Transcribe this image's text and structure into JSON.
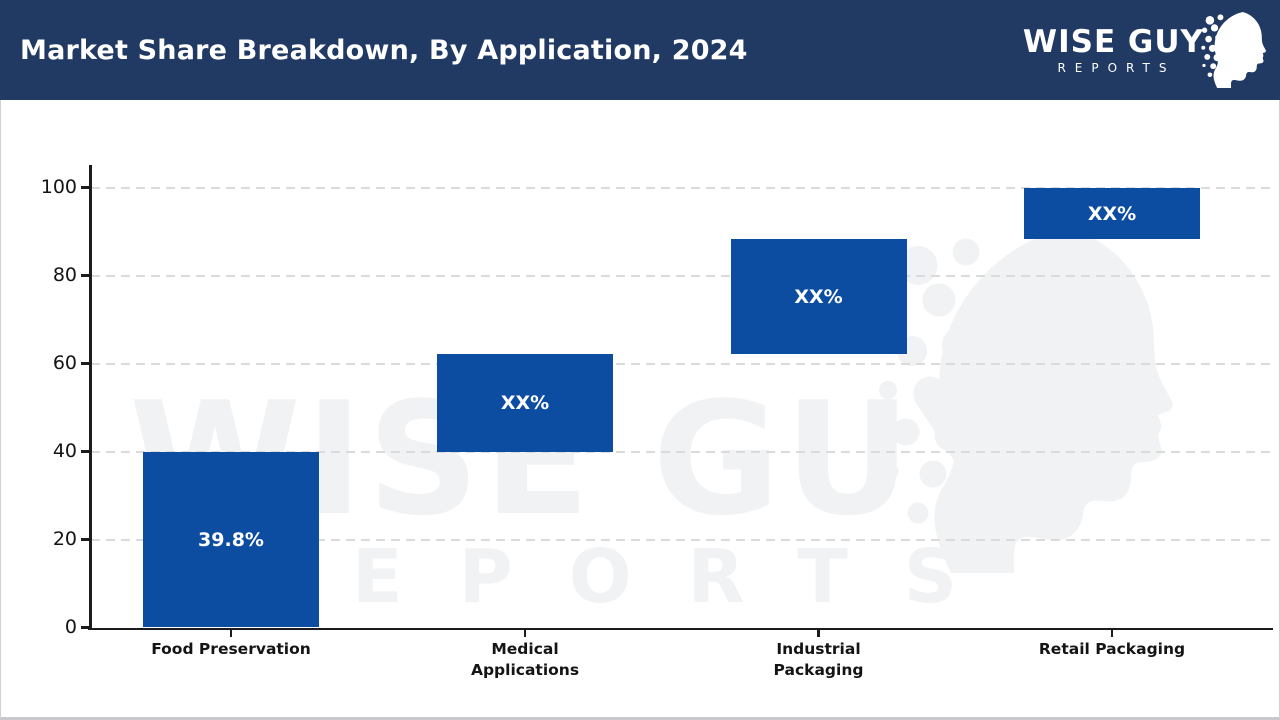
{
  "header": {
    "title": "Market Share Breakdown, By Application, 2024"
  },
  "logo": {
    "line1": "WISE GUY",
    "line2": "REPORTS",
    "icon": "head-profile-dots-icon"
  },
  "watermark": {
    "line1": "WISE GUY",
    "line2": "REPORTS",
    "icon": "head-profile-dots-icon"
  },
  "colors": {
    "header_bg": "#213a64",
    "bar_blue": "#0c4da2",
    "bar_label": "#ffffff",
    "axis_text": "#141414",
    "gridline": "#dbdbdb",
    "watermark": "#f1f2f4"
  },
  "chart_data": {
    "type": "bar",
    "subtype": "waterfall",
    "title": "Market Share Breakdown, By Application, 2024",
    "xlabel": "",
    "ylabel": "",
    "ylim": [
      0,
      105
    ],
    "yticks": [
      0,
      20,
      40,
      60,
      80,
      100
    ],
    "grid": "horizontal-dashed",
    "legend": "none",
    "categories": [
      "Food Preservation",
      "Medical\nApplications",
      "Industrial\nPackaging",
      "Retail Packaging"
    ],
    "bars": [
      {
        "category": "Food Preservation",
        "start": 0,
        "end": 39.8,
        "label": "39.8%"
      },
      {
        "category": "Medical Applications",
        "start": 39.8,
        "end": 62.1,
        "label": "XX%"
      },
      {
        "category": "Industrial Packaging",
        "start": 62.1,
        "end": 88.3,
        "label": "XX%"
      },
      {
        "category": "Retail Packaging",
        "start": 88.3,
        "end": 99.8,
        "label": "XX%"
      }
    ]
  }
}
